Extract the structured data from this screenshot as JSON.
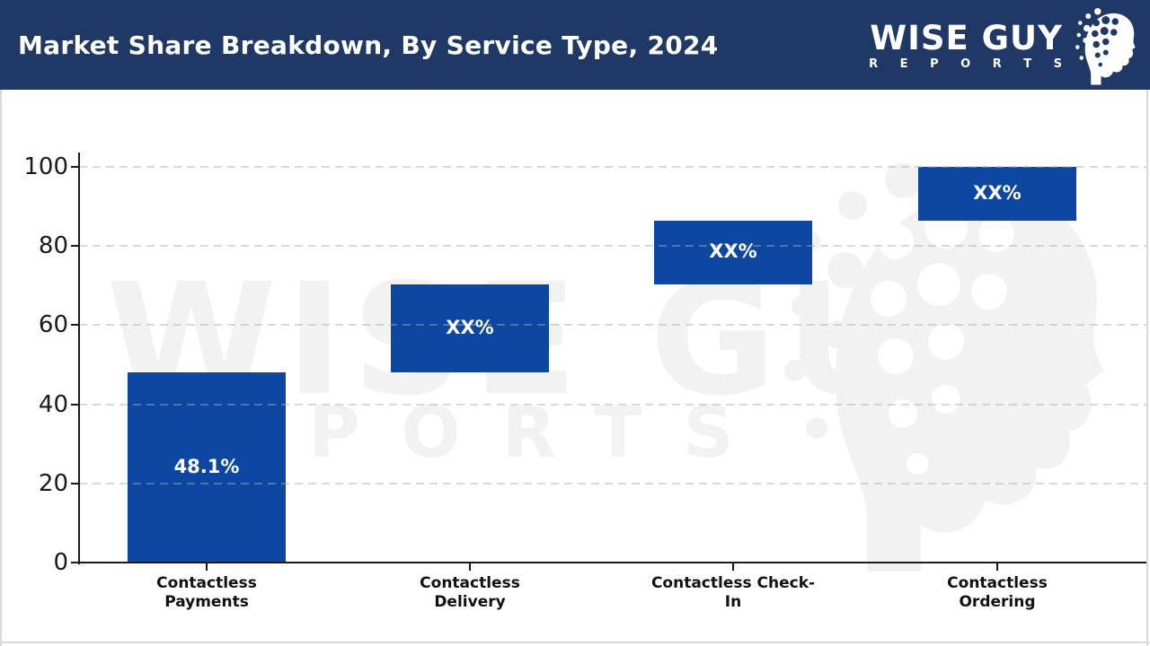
{
  "header": {
    "title": "Market Share Breakdown, By Service Type, 2024",
    "brand": {
      "line1": "WISE GUY",
      "line2": "R E P O R T S"
    }
  },
  "watermark": {
    "line1": "WISE GUY",
    "line2": "REPORTS"
  },
  "chart_data": {
    "type": "bar",
    "subtype": "waterfall",
    "title": "Market Share Breakdown, By Service Type, 2024",
    "categories": [
      "Contactless Payments",
      "Contactless Delivery",
      "Contactless Check-In",
      "Contactless Ordering"
    ],
    "category_label_lines": [
      [
        "Contactless",
        "Payments"
      ],
      [
        "Contactless",
        "Delivery"
      ],
      [
        "Contactless Check-",
        "In"
      ],
      [
        "Contactless",
        "Ordering"
      ]
    ],
    "series": [
      {
        "name": "Market Share",
        "segments": [
          {
            "category": "Contactless Payments",
            "start": 0,
            "end": 48.1,
            "label": "48.1%"
          },
          {
            "category": "Contactless Delivery",
            "start": 48.1,
            "end": 70.4,
            "label": "XX%"
          },
          {
            "category": "Contactless Check-In",
            "start": 70.4,
            "end": 86.3,
            "label": "XX%"
          },
          {
            "category": "Contactless Ordering",
            "start": 86.3,
            "end": 100,
            "label": "XX%"
          }
        ]
      }
    ],
    "xlabel": "",
    "ylabel": "",
    "ylim": [
      0,
      103.6
    ],
    "yticks": [
      0,
      20,
      40,
      60,
      80,
      100
    ],
    "grid": "horizontal-dashed",
    "legend": "none",
    "bar_color": "#0d47a1",
    "bar_label_color": "#ffffff",
    "grid_color": "#dcdcdc",
    "header_color": "#1f3865"
  }
}
